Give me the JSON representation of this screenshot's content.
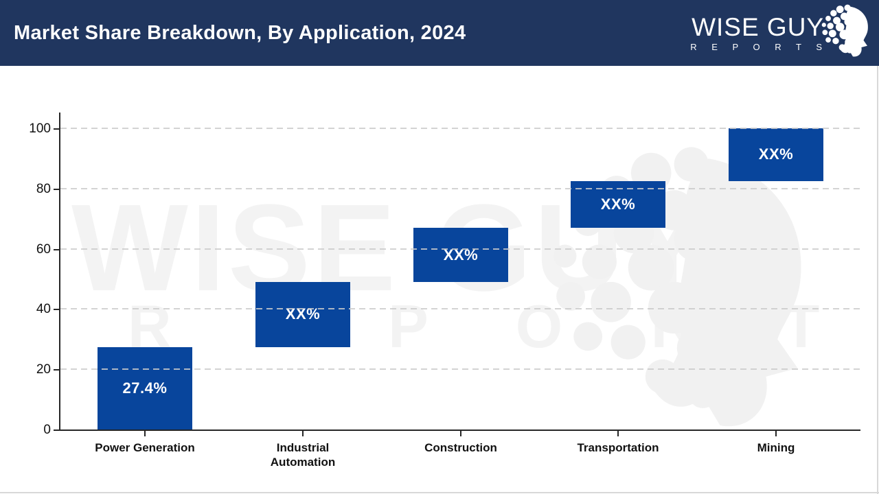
{
  "header": {
    "title": "Market Share Breakdown, By Application, 2024",
    "logo": {
      "line1": "WISE GUY",
      "line2": "R E P O R T S"
    }
  },
  "watermark": {
    "line1": "WISE GUY",
    "line2": "R E P O R T S"
  },
  "colors": {
    "header_bg": "#20365f",
    "bar": "#08459c",
    "axis": "#262626",
    "grid": "#d4d4d4",
    "bar_value_text": "#ffffff",
    "tick_text": "#111111",
    "watermark": "#f3f3f3"
  },
  "chart_data": {
    "type": "bar",
    "subtype": "waterfall",
    "title": "Market Share Breakdown, By Application, 2024",
    "categories": [
      "Power Generation",
      "Industrial Automation",
      "Construction",
      "Transportation",
      "Mining"
    ],
    "segments": [
      {
        "category": "Power Generation",
        "start": 0,
        "end": 27.4,
        "label": "27.4%"
      },
      {
        "category": "Industrial Automation",
        "start": 27.4,
        "end": 49.0,
        "label": "XX%"
      },
      {
        "category": "Construction",
        "start": 49.0,
        "end": 66.9,
        "label": "XX%"
      },
      {
        "category": "Transportation",
        "start": 66.9,
        "end": 82.5,
        "label": "XX%"
      },
      {
        "category": "Mining",
        "start": 82.5,
        "end": 100.0,
        "label": "XX%"
      }
    ],
    "xlabel": "",
    "ylabel": "",
    "ylim": [
      0,
      100
    ],
    "yticks": [
      0,
      20,
      40,
      60,
      80,
      100
    ],
    "grid": true,
    "grid_style": "dashed",
    "legend": "none"
  }
}
